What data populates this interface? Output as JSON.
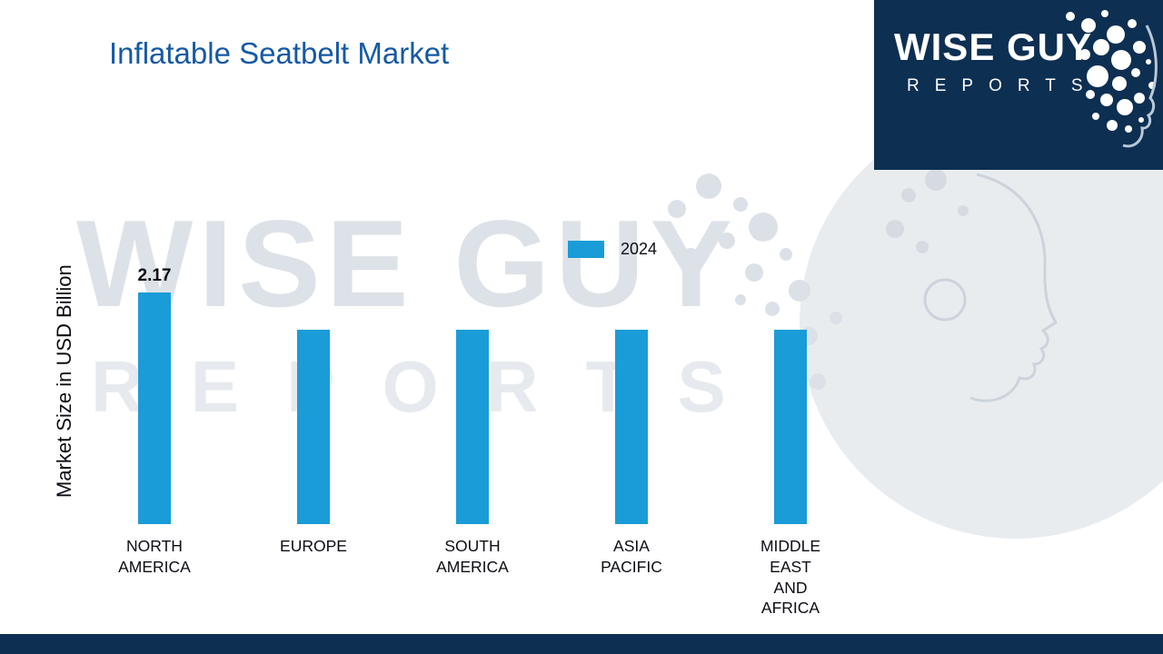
{
  "page": {
    "background": "#ffffff"
  },
  "logo": {
    "brand": "WISE GUY",
    "sub": "REPORTS",
    "bg_color": "#0d2f52",
    "text_color": "#ffffff"
  },
  "watermark": {
    "line1": "WISE GUY",
    "line2": "REPORTS"
  },
  "footer": {
    "bar_color": "#0d2f52"
  },
  "colors": {
    "title_blue": "#1659a5",
    "bar_blue": "#1a9cd8",
    "navy": "#0d2f52",
    "watermark_gray": "#dde2e8"
  },
  "chart_data": {
    "type": "bar",
    "title": "Inflatable Seatbelt Market",
    "ylabel": "Market Size in USD Billion",
    "xlabel": "",
    "grid": false,
    "legend_position": "top-right-of-plot",
    "bar_color": "#1a9cd8",
    "ylim": [
      0,
      2.5
    ],
    "legend": [
      {
        "label": "2024",
        "color": "#1a9cd8"
      }
    ],
    "categories": [
      "NORTH AMERICA",
      "EUROPE",
      "SOUTH AMERICA",
      "ASIA PACIFIC",
      "MIDDLE EAST AND AFRICA"
    ],
    "category_labels": [
      [
        "NORTH",
        "AMERICA"
      ],
      [
        "EUROPE"
      ],
      [
        "SOUTH",
        "AMERICA"
      ],
      [
        "ASIA",
        "PACIFIC"
      ],
      [
        "MIDDLE",
        "EAST",
        "AND",
        "AFRICA"
      ]
    ],
    "values": [
      2.17,
      1.82,
      1.82,
      1.82,
      1.82
    ],
    "value_labels": [
      "2.17",
      "",
      "",
      "",
      ""
    ]
  }
}
